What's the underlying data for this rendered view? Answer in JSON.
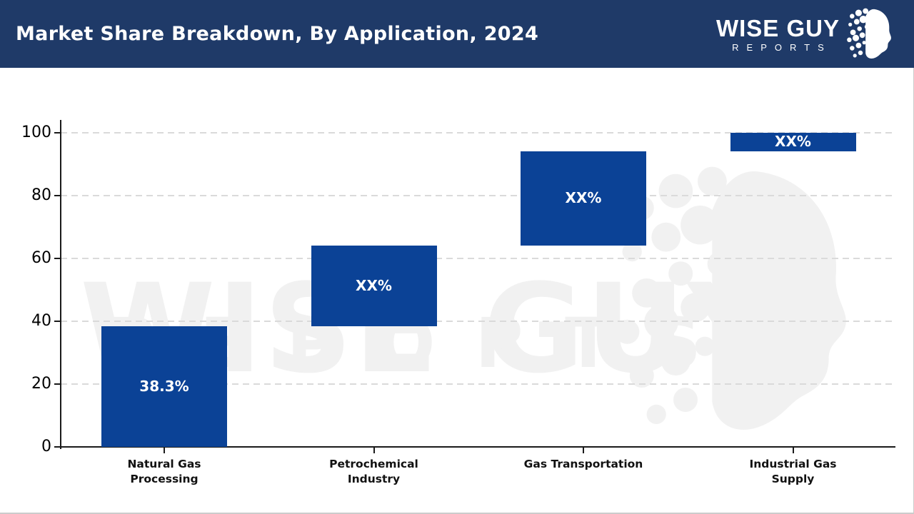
{
  "header": {
    "title": "Market Share Breakdown, By Application, 2024",
    "logo": {
      "line1": "WISE GUY",
      "line2": "REPORTS"
    }
  },
  "watermark": {
    "line1": "WISE GUY",
    "line2": "REPORTS"
  },
  "chart_data": {
    "type": "bar",
    "subtype": "waterfall",
    "title": "Market Share Breakdown, By Application, 2024",
    "categories": [
      "Natural Gas Processing",
      "Petrochemical Industry",
      "Gas Transportation",
      "Industrial Gas Supply"
    ],
    "category_lines": [
      [
        "Natural Gas",
        "Processing"
      ],
      [
        "Petrochemical",
        "Industry"
      ],
      [
        "Gas Transportation"
      ],
      [
        "Industrial Gas",
        "Supply"
      ]
    ],
    "segments": [
      {
        "start": 0,
        "end": 38.3,
        "label": "38.3%"
      },
      {
        "start": 38.3,
        "end": 64.2,
        "label": "XX%"
      },
      {
        "start": 64.2,
        "end": 94.1,
        "label": "XX%"
      },
      {
        "start": 94.1,
        "end": 100,
        "label": "XX%"
      }
    ],
    "yticks": [
      0,
      20,
      40,
      60,
      80,
      100
    ],
    "ylim": [
      0,
      104
    ],
    "xlabel": "",
    "ylabel": "",
    "grid": "horizontal-dashed",
    "legend": "none"
  },
  "colors": {
    "header_bg": "#1f3a68",
    "bar": "#0b4296",
    "bar_label": "#ffffff",
    "grid": "#dadada",
    "axis": "#1a1a1a",
    "watermark": "#f1f1f1"
  }
}
